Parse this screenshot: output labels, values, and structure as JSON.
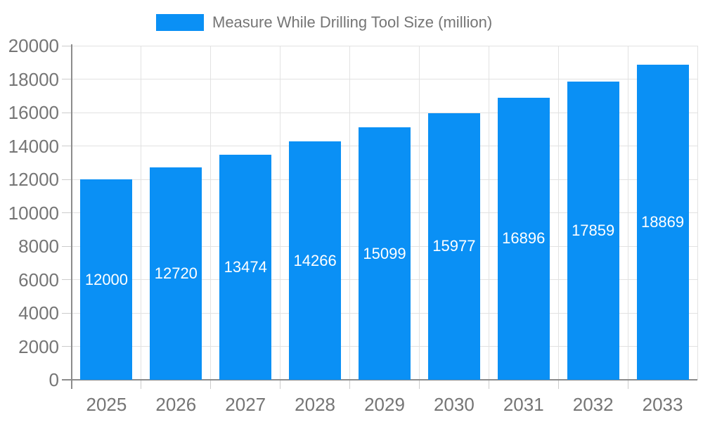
{
  "legend": {
    "items": [
      {
        "label": "Measure While Drilling Tool Size (million)",
        "color": "#0A90F5"
      }
    ]
  },
  "chart_data": {
    "type": "bar",
    "title": "Measure While Drilling Tool Size (million)",
    "categories": [
      "2025",
      "2026",
      "2027",
      "2028",
      "2029",
      "2030",
      "2031",
      "2032",
      "2033"
    ],
    "series": [
      {
        "name": "Measure While Drilling Tool Size (million)",
        "values": [
          12000,
          12720,
          13474,
          14266,
          15099,
          15977,
          16896,
          17859,
          18869
        ]
      }
    ],
    "xlabel": "",
    "ylabel": "",
    "ylim": [
      0,
      20000
    ],
    "ytick_step": 2000,
    "ytick_labels": [
      "0",
      "2000",
      "4000",
      "6000",
      "8000",
      "10000",
      "12000",
      "14000",
      "16000",
      "18000",
      "20000"
    ],
    "grid": true,
    "legend_position": "top",
    "data_labels": true,
    "data_label_position": "inside-center"
  },
  "colors": {
    "bar": "#0A90F5",
    "axis_line": "#8C8C8C",
    "grid_line": "#E2E2E2",
    "tick": "#CCCCCC",
    "tick_label": "#757575",
    "legend_text": "#757575",
    "data_label": "#FFFFFF",
    "background": "#FFFFFF"
  }
}
